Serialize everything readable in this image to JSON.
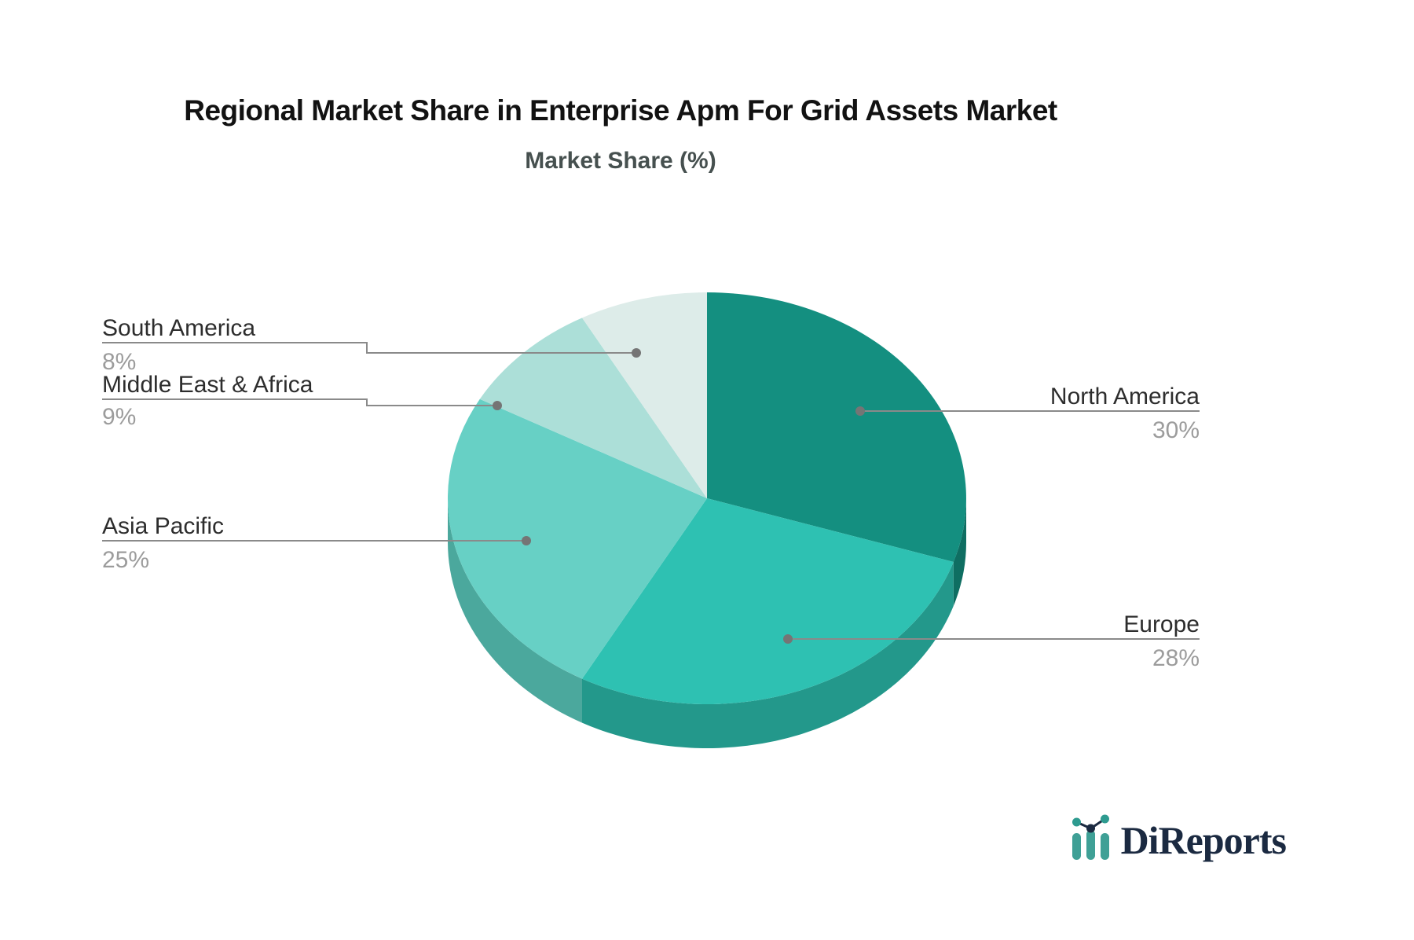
{
  "header": {
    "title": "Regional Market Share in Enterprise Apm For Grid Assets Market",
    "subtitle": "Market Share (%)"
  },
  "chart_data": {
    "type": "pie",
    "style": "3d-depth-pie",
    "title": "Regional Market Share in Enterprise Apm For Grid Assets Market",
    "subtitle": "Market Share (%)",
    "unit": "%",
    "start_angle": "12-oclock, clockwise",
    "legend_position": "callout-labels",
    "categories": [
      "North America",
      "Europe",
      "Asia Pacific",
      "Middle East & Africa",
      "South America"
    ],
    "values": [
      30,
      28,
      25,
      9,
      8
    ],
    "slices": [
      {
        "name": "North America",
        "value": 30,
        "value_label": "30%",
        "color": "#148F80",
        "side_color": "#0F6E62"
      },
      {
        "name": "Europe",
        "value": 28,
        "value_label": "28%",
        "color": "#2EC1B2",
        "side_color": "#23988B"
      },
      {
        "name": "Asia Pacific",
        "value": 25,
        "value_label": "25%",
        "color": "#67D0C5",
        "side_color": "#4BA89D"
      },
      {
        "name": "Middle East & Africa",
        "value": 9,
        "value_label": "9%",
        "color": "#ACDFD8",
        "side_color": "#8CC4BB"
      },
      {
        "name": "South America",
        "value": 8,
        "value_label": "8%",
        "color": "#DDECE9",
        "side_color": "#B9D6D1"
      }
    ],
    "callout_line_color": "#8A8A8A",
    "callout_dot_color": "#757575"
  },
  "branding": {
    "logo_text": "DiReports",
    "logo_text_color": "#1b2a41",
    "logo_bar_color": "#3FA096",
    "logo_dot_teal": "#2E9B90"
  }
}
